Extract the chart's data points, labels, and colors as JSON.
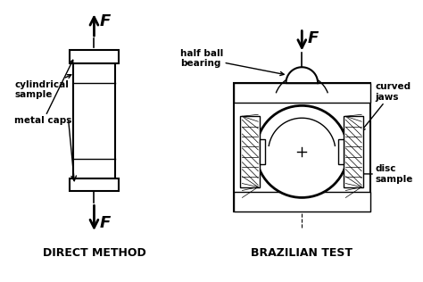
{
  "bg_color": "#ffffff",
  "line_color": "#000000",
  "title_left": "DIRECT METHOD",
  "title_right": "BRAZILIAN TEST",
  "label_cylindrical": "cylindrical\nsample",
  "label_metal_caps": "metal caps",
  "label_half_ball": "half ball\nbearing",
  "label_curved_jaws": "curved\njaws",
  "label_disc_sample": "disc\nsample",
  "label_F": "F"
}
